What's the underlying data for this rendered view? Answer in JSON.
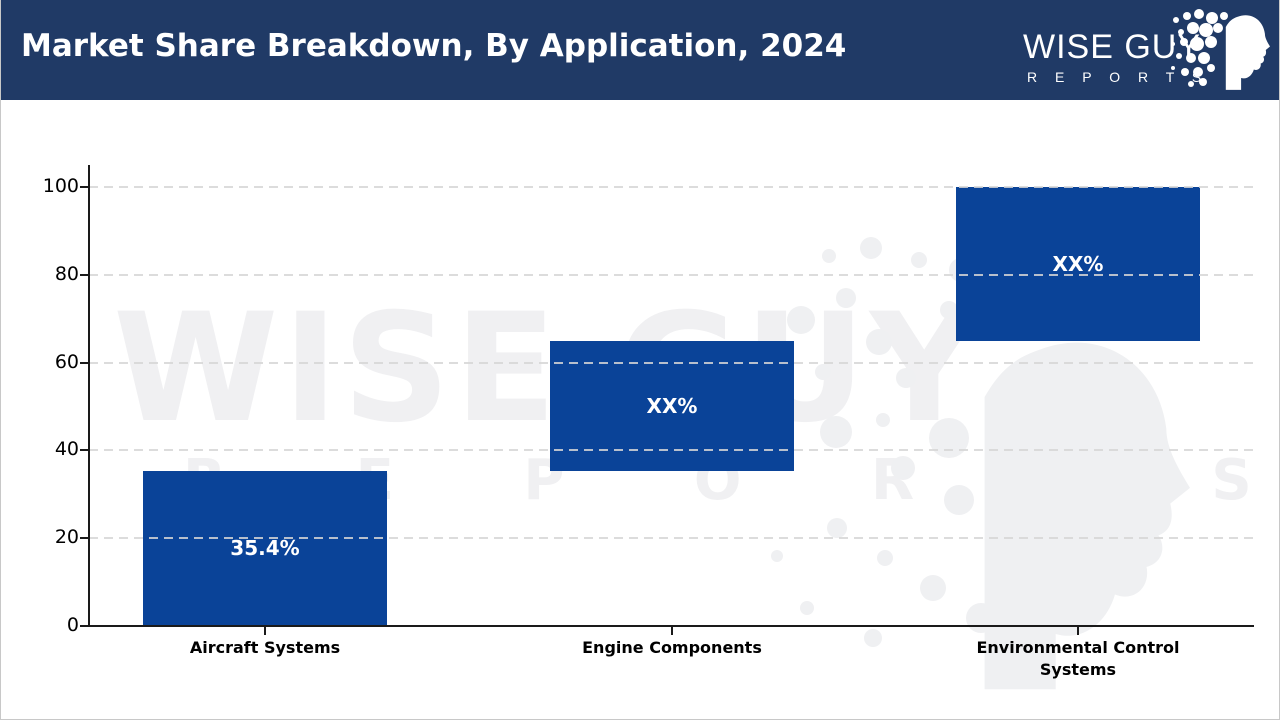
{
  "header": {
    "title": "Market Share Breakdown, By Application, 2024",
    "logo": {
      "wordmark": "WISE GUY",
      "tagline": "R E P O R T S"
    }
  },
  "watermark": {
    "wordmark": "WISE GUY",
    "tagline": "R E P O R T S"
  },
  "chart_data": {
    "type": "bar",
    "subtype": "floating-waterfall",
    "title": "Market Share Breakdown, By Application, 2024",
    "categories": [
      "Aircraft Systems",
      "Engine Components",
      "Environmental Control Systems"
    ],
    "segments": [
      {
        "category": "Aircraft Systems",
        "start": 0,
        "end": 35.4,
        "label": "35.4%"
      },
      {
        "category": "Engine Components",
        "start": 35.4,
        "end": 64.9,
        "label": "XX%"
      },
      {
        "category": "Environmental Control Systems",
        "start": 64.9,
        "end": 100,
        "label": "XX%"
      }
    ],
    "xlabel": "",
    "ylabel": "",
    "ylim": [
      0,
      100
    ],
    "yticks": [
      0,
      20,
      40,
      60,
      80,
      100
    ],
    "grid": "horizontal-dashed",
    "legend": "none",
    "bar_color": "#0a4398",
    "bar_label_color": "#ffffff"
  },
  "colors": {
    "header_bg": "#203a66",
    "bar": "#0a4398",
    "axis": "#1a1a1a",
    "gridline": "#d9d9d9",
    "watermark": "#f0f0f2",
    "page_border": "#c8c8c8"
  }
}
